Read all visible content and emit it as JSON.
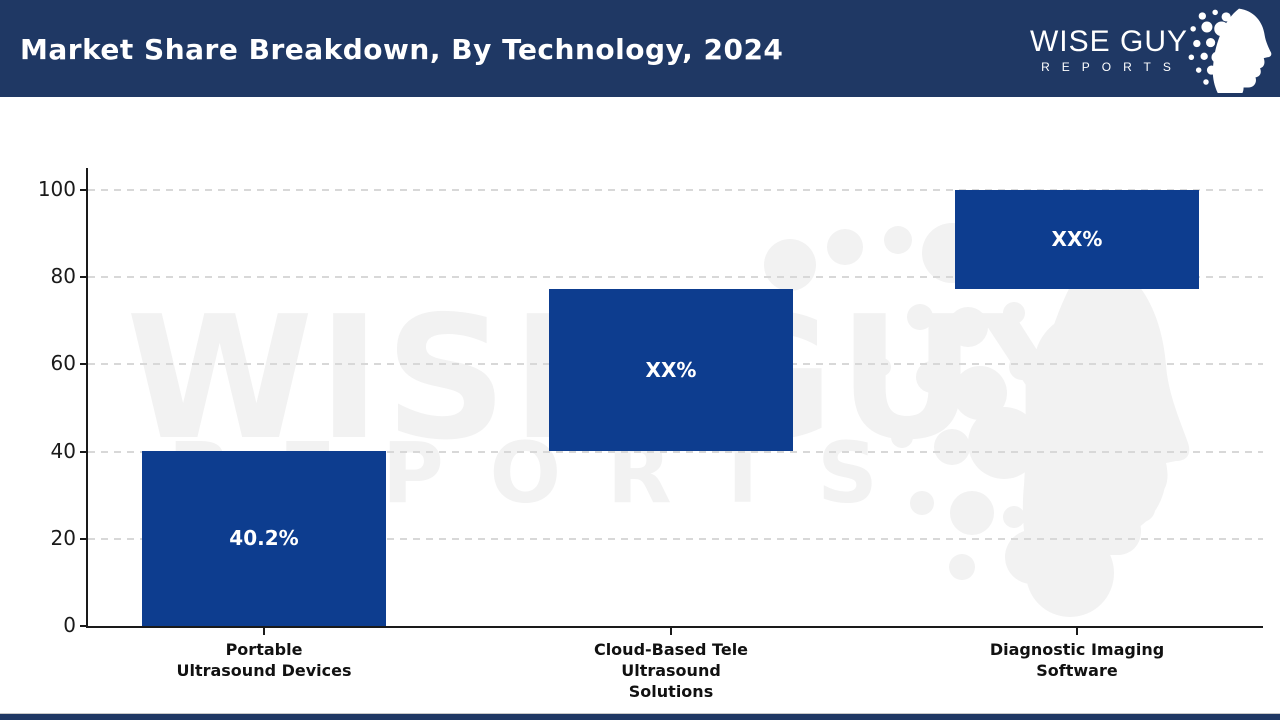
{
  "header": {
    "title": "Market Share Breakdown, By Technology, 2024",
    "brand": {
      "line1": "WISE GUY",
      "line2": "REPORTS"
    }
  },
  "watermark": {
    "line1": "WISE GUY",
    "line2": "REPORTS"
  },
  "chart_data": {
    "type": "bar",
    "subtype": "floating-waterfall",
    "title": "Market Share Breakdown, By Technology, 2024",
    "categories": [
      [
        "Portable",
        "Ultrasound Devices"
      ],
      [
        "Cloud-Based Tele",
        "Ultrasound",
        "Solutions"
      ],
      [
        "Diagnostic Imaging",
        "Software"
      ]
    ],
    "series": [
      {
        "name": "Market Share",
        "segments": [
          {
            "category": "Portable Ultrasound Devices",
            "from": 0,
            "to": 40.2,
            "label": "40.2%"
          },
          {
            "category": "Cloud-Based Tele Ultrasound Solutions",
            "from": 40.2,
            "to": 77.3,
            "label": "XX%"
          },
          {
            "category": "Diagnostic Imaging Software",
            "from": 77.3,
            "to": 100,
            "label": "XX%"
          }
        ]
      }
    ],
    "xlabel": "",
    "ylabel": "",
    "ylim": [
      0,
      100
    ],
    "yticks": [
      0,
      20,
      40,
      60,
      80,
      100
    ],
    "grid": "horizontal-dashed",
    "legend": "none",
    "bar_color": "#0d3d8f",
    "bar_label_color": "#ffffff"
  },
  "colors": {
    "header_bg": "#1f3864",
    "footer_bg": "#1f3864",
    "bar": "#0d3d8f",
    "grid": "#d8d8d8",
    "axis": "#1a1a1a",
    "watermark": "#f2f2f2",
    "title_text": "#ffffff",
    "background": "#ffffff"
  }
}
